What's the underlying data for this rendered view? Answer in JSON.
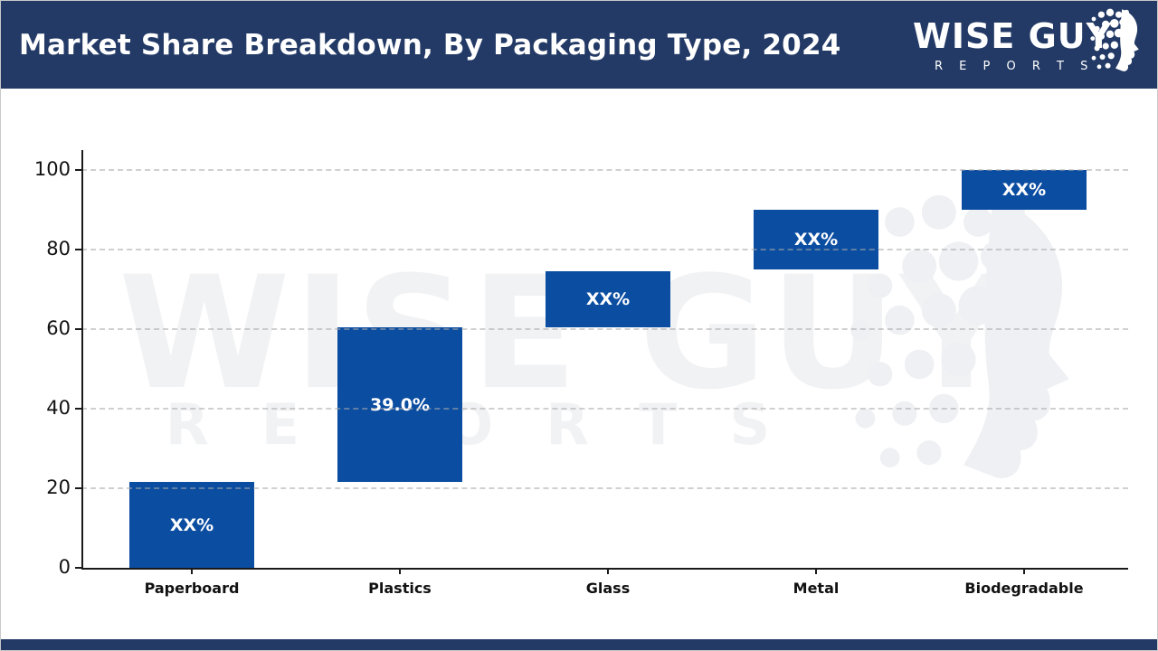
{
  "header": {
    "title": "Market Share Breakdown, By Packaging Type, 2024",
    "bg_color": "#233a66",
    "logo": {
      "line1": "WISE GUY",
      "line2": "R E P O R T S"
    }
  },
  "watermark": {
    "line1": "WISE GUY",
    "line2": "REPORTS"
  },
  "chart_data": {
    "type": "bar",
    "subtype": "waterfall",
    "title": "Market Share Breakdown, By Packaging Type, 2024",
    "xlabel": "",
    "ylabel": "",
    "categories": [
      "Paperboard",
      "Plastics",
      "Glass",
      "Metal",
      "Biodegradable"
    ],
    "segments": [
      {
        "category": "Paperboard",
        "start": 0,
        "end": 21.5,
        "label": "XX%"
      },
      {
        "category": "Plastics",
        "start": 21.5,
        "end": 60.5,
        "label": "39.0%"
      },
      {
        "category": "Glass",
        "start": 60.5,
        "end": 74.5,
        "label": "XX%"
      },
      {
        "category": "Metal",
        "start": 75,
        "end": 90,
        "label": "XX%"
      },
      {
        "category": "Biodegradable",
        "start": 90,
        "end": 100,
        "label": "XX%"
      }
    ],
    "values": [
      21.5,
      39.0,
      14.0,
      15.0,
      10.0
    ],
    "ylim": [
      0,
      105
    ],
    "yticks": [
      0,
      20,
      40,
      60,
      80,
      100
    ],
    "grid": true,
    "grid_style": "dashed",
    "legend": "none",
    "bar_color": "#0b4da1",
    "bar_label_color": "#ffffff",
    "axis_color": "#1a1a1a",
    "grid_color": "#cccccc"
  },
  "colors": {
    "header_bg": "#233a66",
    "footer_bg": "#233a66",
    "watermark": "#f1f2f4",
    "page_bg": "#ffffff"
  }
}
